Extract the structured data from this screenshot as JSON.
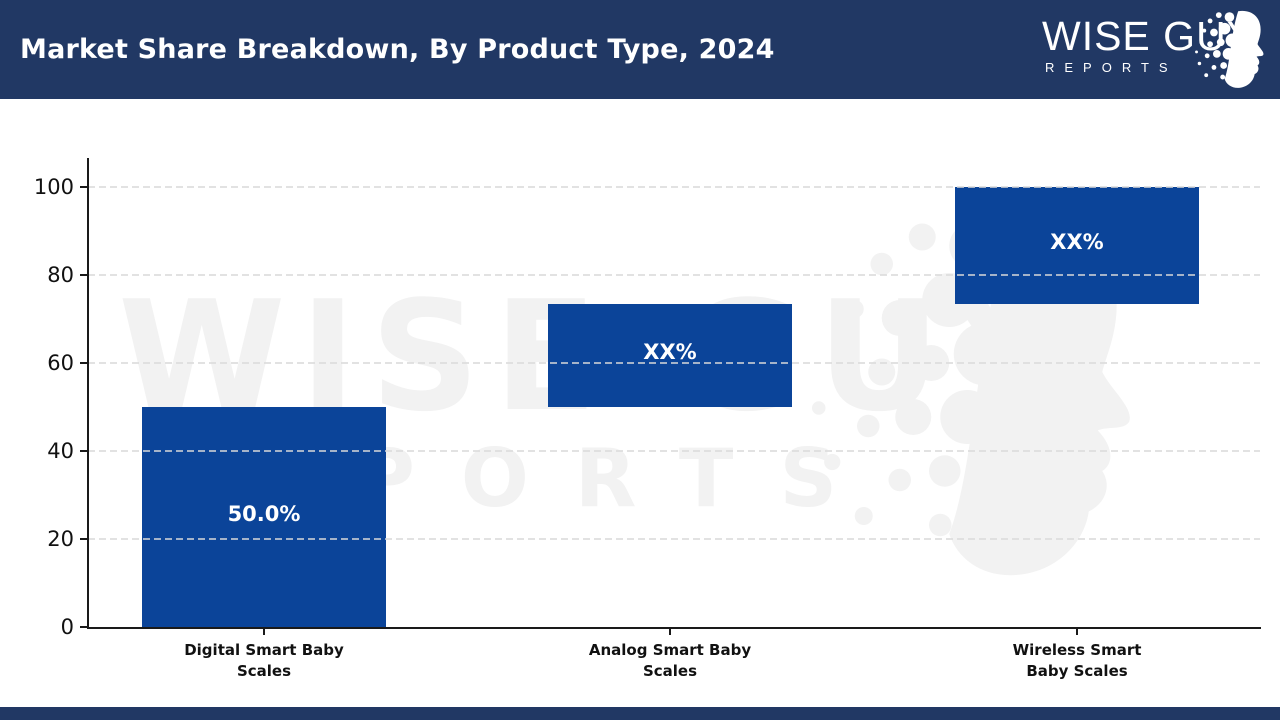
{
  "header": {
    "title": "Market Share Breakdown, By Product Type, 2024",
    "bg_color": "#213864",
    "logo": {
      "line1": "WISE GUY",
      "line2": "REPORTS"
    }
  },
  "watermark": {
    "line1": "WISE GUY",
    "line2": "REPORTS"
  },
  "footer": {
    "bg_color": "#213864"
  },
  "chart_data": {
    "type": "bar",
    "subtype": "floating-stacked-waterfall",
    "title": "Market Share Breakdown, By Product Type, 2024",
    "categories": [
      "Digital Smart Baby Scales",
      "Analog Smart Baby Scales",
      "Wireless Smart Baby Scales"
    ],
    "category_lines": [
      [
        "Digital Smart Baby",
        "Scales"
      ],
      [
        "Analog Smart Baby",
        "Scales"
      ],
      [
        "Wireless Smart",
        "Baby Scales"
      ]
    ],
    "bars": [
      {
        "category": "Digital Smart Baby Scales",
        "start": 0,
        "end": 50,
        "value_label": "50.0%"
      },
      {
        "category": "Analog Smart Baby Scales",
        "start": 50,
        "end": 73.5,
        "value_label": "XX%"
      },
      {
        "category": "Wireless Smart Baby Scales",
        "start": 73.5,
        "end": 100,
        "value_label": "XX%"
      }
    ],
    "yticks": [
      0,
      20,
      40,
      60,
      80,
      100
    ],
    "ylim": [
      0,
      107
    ],
    "xlabel": "",
    "ylabel": "",
    "grid": true,
    "grid_style": "dashed",
    "legend": "none",
    "bar_color": "#0b4499",
    "value_label_color": "#ffffff"
  },
  "colors": {
    "header_bg": "#213864",
    "footer_bg": "#213864",
    "bar": "#0b4499",
    "grid": "#d9d9d9",
    "axis": "#1a1a1a",
    "text": "#111111",
    "watermark": "#f2f2f2"
  }
}
